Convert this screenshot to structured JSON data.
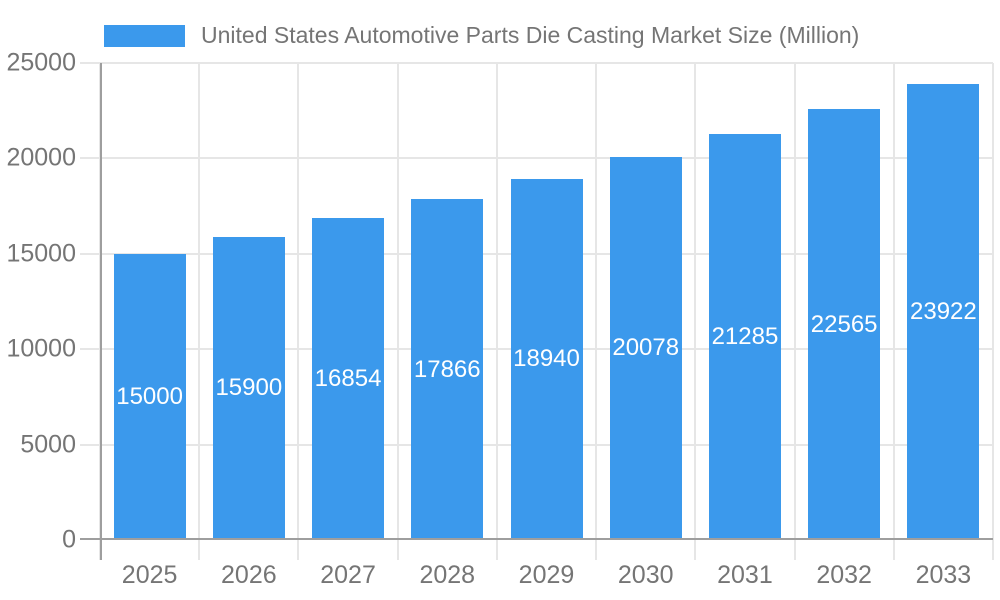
{
  "chart_data": {
    "type": "bar",
    "title": "United States Automotive Parts Die Casting Market Size (Million)",
    "categories": [
      "2025",
      "2026",
      "2027",
      "2028",
      "2029",
      "2030",
      "2031",
      "2032",
      "2033"
    ],
    "series": [
      {
        "name": "United States Automotive Parts Die Casting Market Size (Million)",
        "values": [
          15000,
          15900,
          16854,
          17866,
          18940,
          20078,
          21285,
          22565,
          23922
        ]
      }
    ],
    "value_labels": [
      "15000",
      "15900",
      "16854",
      "17866",
      "18940",
      "20078",
      "21285",
      "22565",
      "23922"
    ],
    "xlabel": "",
    "ylabel": "",
    "ylim": [
      0,
      25000
    ],
    "yticks": [
      0,
      5000,
      10000,
      15000,
      20000,
      25000
    ],
    "ytick_labels": [
      "0",
      "5000",
      "10000",
      "15000",
      "20000",
      "25000"
    ],
    "grid": "horizontal and vertical gridlines, ticks extend past axes",
    "legend_position": "top-left",
    "colors": {
      "bar": "#3b99ec",
      "value_label": "#ffffff",
      "axis_text": "#757575",
      "legend_text": "#757575",
      "gridline": "#e6e6e6",
      "axis_line": "#9e9e9e",
      "background": "#ffffff"
    }
  }
}
